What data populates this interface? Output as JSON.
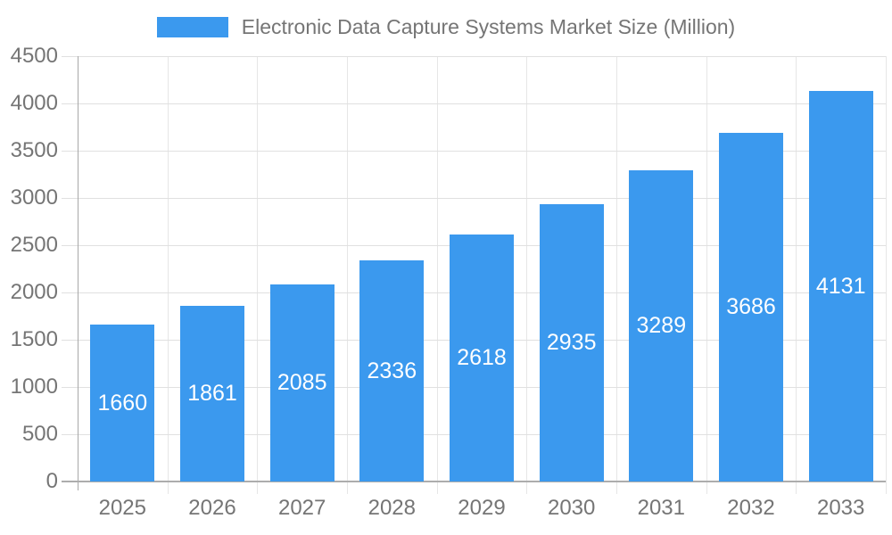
{
  "legend": {
    "label": "Electronic Data Capture Systems Market Size (Million)"
  },
  "chart_data": {
    "type": "bar",
    "title": "Electronic Data Capture Systems Market Size (Million)",
    "categories": [
      "2025",
      "2026",
      "2027",
      "2028",
      "2029",
      "2030",
      "2031",
      "2032",
      "2033"
    ],
    "values": [
      1660,
      1861,
      2085,
      2336,
      2618,
      2935,
      3289,
      3686,
      4131
    ],
    "series": [
      {
        "name": "Electronic Data Capture Systems Market Size (Million)",
        "values": [
          1660,
          1861,
          2085,
          2336,
          2618,
          2935,
          3289,
          3686,
          4131
        ]
      }
    ],
    "xlabel": "",
    "ylabel": "",
    "ylim": [
      0,
      4500
    ],
    "ytick_step": 500,
    "yticks": [
      0,
      500,
      1000,
      1500,
      2000,
      2500,
      3000,
      3500,
      4000,
      4500
    ],
    "grid": true,
    "legend_position": "top",
    "value_labels_position": "inside-center",
    "colors": {
      "bar": "#3b99ee",
      "value_label": "#ffffff",
      "axis_text": "#757575",
      "gridline": "#e0e0e0",
      "axis_line": "#adadad"
    }
  }
}
